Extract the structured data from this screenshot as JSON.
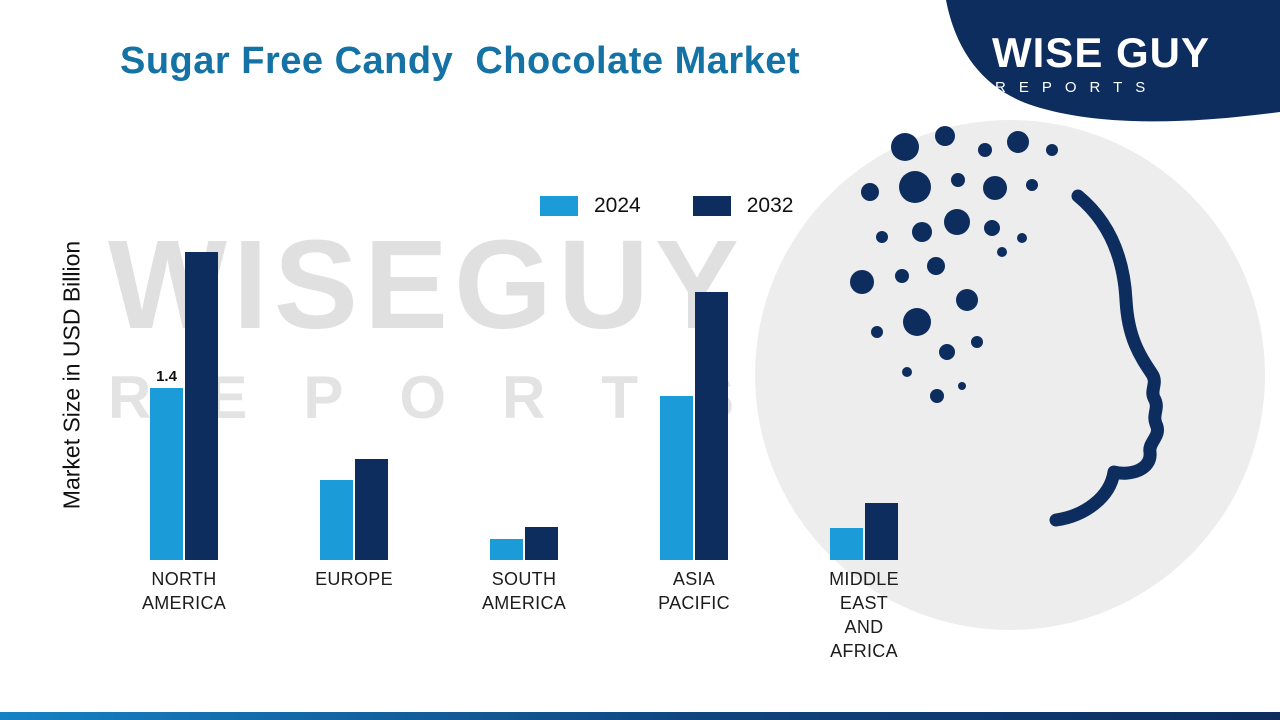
{
  "logo": {
    "line1": "WISE GUY",
    "line2": "REPORTS"
  },
  "watermark": {
    "line1": "WISEGUY",
    "line2": "REPORTS"
  },
  "colors": {
    "title": "#1472a4",
    "navy": "#0d2d5e",
    "blue_2024": "#1b9cd8",
    "gray_circle": "#ededed",
    "watermark_gray": "#d6d6d6",
    "footer_left": "#1582c4",
    "footer_right": "#0d2d5e"
  },
  "chart_data": {
    "type": "bar",
    "title": "Sugar Free Candy  Chocolate Market",
    "xlabel": "",
    "ylabel": "Market Size in USD Billion",
    "ylim": [
      0,
      2.6
    ],
    "grid": false,
    "legend_position": "top",
    "categories": [
      "NORTH\nAMERICA",
      "EUROPE",
      "SOUTH\nAMERICA",
      "ASIA\nPACIFIC",
      "MIDDLE\nEAST\nAND\nAFRICA"
    ],
    "series": [
      {
        "name": "2024",
        "color": "#1b9cd8",
        "values": [
          1.4,
          0.65,
          0.17,
          1.33,
          0.26
        ],
        "labels": [
          "1.4",
          "",
          "",
          "",
          ""
        ]
      },
      {
        "name": "2032",
        "color": "#0d2d5e",
        "values": [
          2.5,
          0.82,
          0.27,
          2.18,
          0.46
        ],
        "labels": [
          "",
          "",
          "",
          "",
          ""
        ]
      }
    ]
  }
}
